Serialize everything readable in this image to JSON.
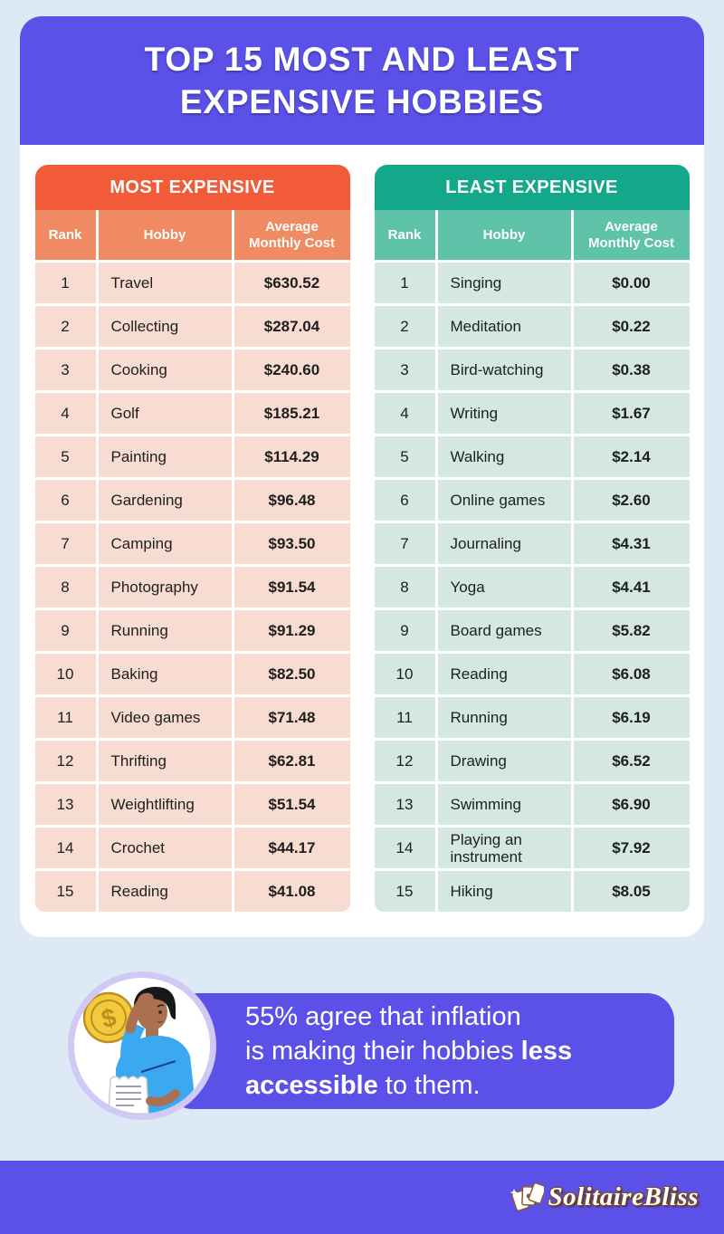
{
  "header": {
    "title_line1": "TOP 15 MOST AND LEAST",
    "title_line2": "EXPENSIVE HOBBIES"
  },
  "chart_data": [
    {
      "type": "table",
      "title": "MOST EXPENSIVE",
      "columns": [
        "Rank",
        "Hobby",
        "Average Monthly Cost"
      ],
      "rows": [
        [
          1,
          "Travel",
          "$630.52"
        ],
        [
          2,
          "Collecting",
          "$287.04"
        ],
        [
          3,
          "Cooking",
          "$240.60"
        ],
        [
          4,
          "Golf",
          "$185.21"
        ],
        [
          5,
          "Painting",
          "$114.29"
        ],
        [
          6,
          "Gardening",
          "$96.48"
        ],
        [
          7,
          "Camping",
          "$93.50"
        ],
        [
          8,
          "Photography",
          "$91.54"
        ],
        [
          9,
          "Running",
          "$91.29"
        ],
        [
          10,
          "Baking",
          "$82.50"
        ],
        [
          11,
          "Video games",
          "$71.48"
        ],
        [
          12,
          "Thrifting",
          "$62.81"
        ],
        [
          13,
          "Weightlifting",
          "$51.54"
        ],
        [
          14,
          "Crochet",
          "$44.17"
        ],
        [
          15,
          "Reading",
          "$41.08"
        ]
      ],
      "costs_numeric": [
        630.52,
        287.04,
        240.6,
        185.21,
        114.29,
        96.48,
        93.5,
        91.54,
        91.29,
        82.5,
        71.48,
        62.81,
        51.54,
        44.17,
        41.08
      ]
    },
    {
      "type": "table",
      "title": "LEAST EXPENSIVE",
      "columns": [
        "Rank",
        "Hobby",
        "Average Monthly Cost"
      ],
      "rows": [
        [
          1,
          "Singing",
          "$0.00"
        ],
        [
          2,
          "Meditation",
          "$0.22"
        ],
        [
          3,
          "Bird-watching",
          "$0.38"
        ],
        [
          4,
          "Writing",
          "$1.67"
        ],
        [
          5,
          "Walking",
          "$2.14"
        ],
        [
          6,
          "Online games",
          "$2.60"
        ],
        [
          7,
          "Journaling",
          "$4.31"
        ],
        [
          8,
          "Yoga",
          "$4.41"
        ],
        [
          9,
          "Board games",
          "$5.82"
        ],
        [
          10,
          "Reading",
          "$6.08"
        ],
        [
          11,
          "Running",
          "$6.19"
        ],
        [
          12,
          "Drawing",
          "$6.52"
        ],
        [
          13,
          "Swimming",
          "$6.90"
        ],
        [
          14,
          "Playing an instrument",
          "$7.92"
        ],
        [
          15,
          "Hiking",
          "$8.05"
        ]
      ],
      "costs_numeric": [
        0.0,
        0.22,
        0.38,
        1.67,
        2.14,
        2.6,
        4.31,
        4.41,
        5.82,
        6.08,
        6.19,
        6.52,
        6.9,
        7.92,
        8.05
      ]
    }
  ],
  "callout": {
    "line1": "55% agree that inflation",
    "line2_regular": "is making their hobbies",
    "line2_bold": "less",
    "line3_bold": "accessible",
    "line3_regular": "to them.",
    "illustration": "person-facepalming-holding-receipt-with-dollar-coin"
  },
  "footer": {
    "brand": "SolitaireBliss"
  },
  "colors": {
    "page_background": "#dde9f4",
    "accent_purple": "#5b51e8",
    "most_expensive_header": "#f15b38",
    "most_expensive_subheader": "#f08a63",
    "most_expensive_row": "#f8dcd1",
    "least_expensive_header": "#13a88a",
    "least_expensive_subheader": "#5ec3a8",
    "least_expensive_row": "#d5e8df",
    "circle_border": "#cfc9f4",
    "coin_gold": "#f4ca3d",
    "shirt_blue": "#3aa9f0"
  }
}
